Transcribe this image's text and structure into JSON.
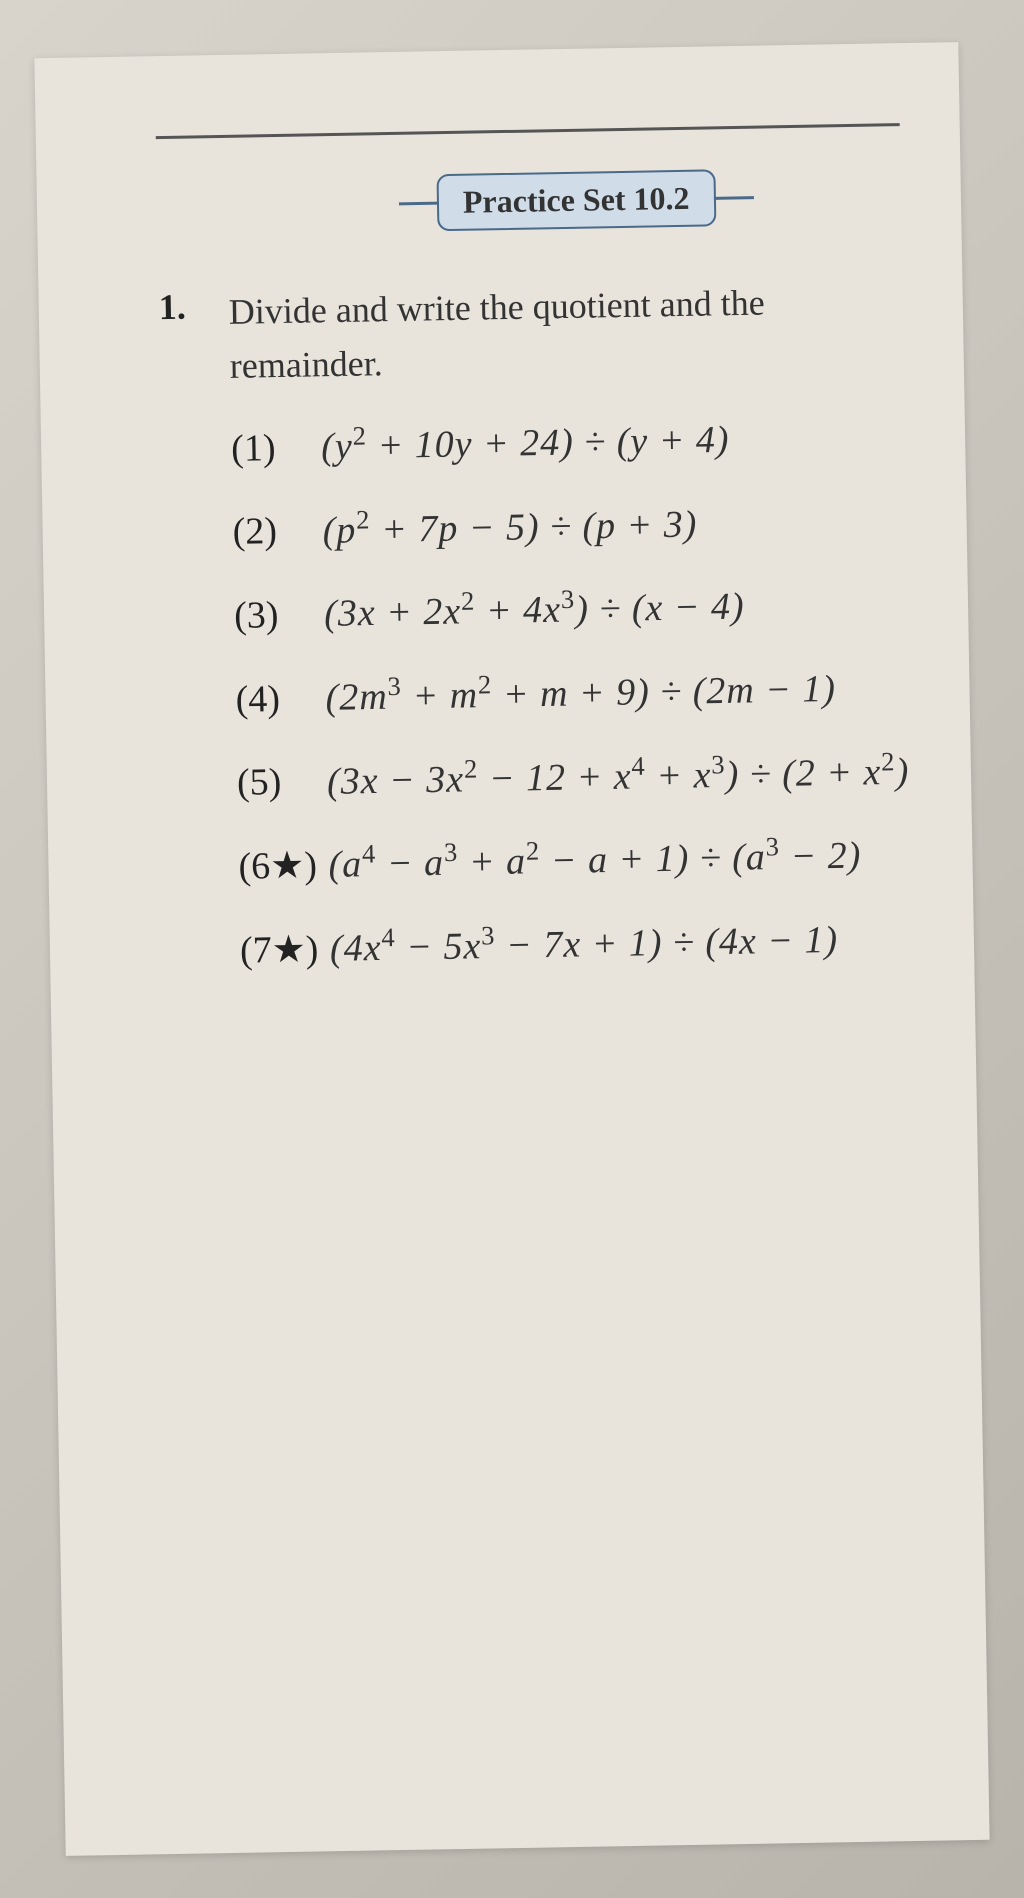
{
  "practice_set": {
    "label": "Practice Set 10.2",
    "border_color": "#4a6a8a",
    "background_color": "#d0dce8"
  },
  "question": {
    "number": "1.",
    "text": "Divide and write the quotient and the remainder."
  },
  "items": [
    {
      "num": "(1)",
      "expr_html": "(<i>y</i><sup>2</sup> + 10<i>y</i> + 24) ÷ (<i>y</i> + 4)"
    },
    {
      "num": "(2)",
      "expr_html": "(<i>p</i><sup>2</sup> + 7<i>p</i> − 5) ÷ (<i>p</i> + 3)"
    },
    {
      "num": "(3)",
      "expr_html": "(3<i>x</i> + 2<i>x</i><sup>2</sup> + 4<i>x</i><sup>3</sup>) ÷ (<i>x</i> − 4)"
    },
    {
      "num": "(4)",
      "expr_html": "(2<i>m</i><sup>3</sup> + <i>m</i><sup>2</sup> + <i>m</i> + 9) ÷ (2<i>m</i> − 1)"
    },
    {
      "num": "(5)",
      "expr_html": "(3<i>x</i> − 3<i>x</i><sup>2</sup> − 12 + <i>x</i><sup>4</sup> + <i>x</i><sup>3</sup>) ÷ (2 + <i>x</i><sup>2</sup>)"
    },
    {
      "num": "(6★)",
      "expr_html": "(<i>a</i><sup>4</sup> − <i>a</i><sup>3</sup> + <i>a</i><sup>2</sup> − <i>a</i> + 1) ÷ (<i>a</i><sup>3</sup> − 2)"
    },
    {
      "num": "(7★)",
      "expr_html": "(4<i>x</i><sup>4</sup> − 5<i>x</i><sup>3</sup> − 7<i>x</i> + 1) ÷ (4<i>x</i> − 1)"
    }
  ],
  "styling": {
    "page_bg": "#e8e4dc",
    "body_bg_start": "#d8d4cc",
    "body_bg_end": "#b8b4ac",
    "text_color": "#333",
    "number_color": "#222",
    "rotation_deg": -1,
    "title_fontsize": 32,
    "question_fontsize": 36,
    "item_fontsize": 38
  }
}
